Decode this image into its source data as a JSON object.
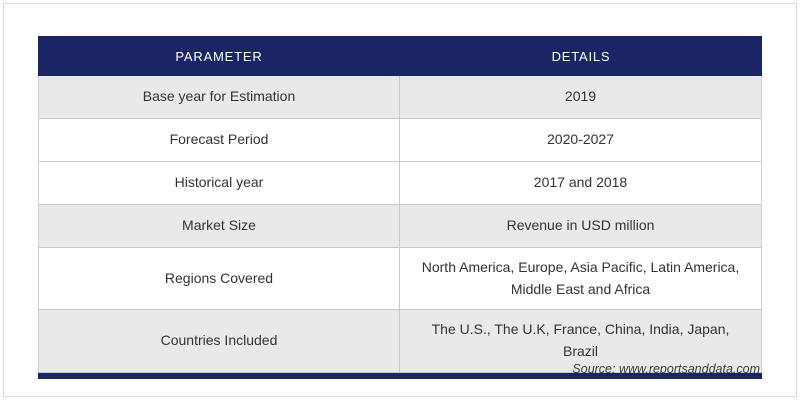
{
  "table": {
    "header": {
      "parameter": "PARAMETER",
      "details": "DETAILS"
    },
    "rows": [
      {
        "parameter": "Base year for Estimation",
        "details": "2019"
      },
      {
        "parameter": "Forecast Period",
        "details": "2020-2027"
      },
      {
        "parameter": "Historical year",
        "details": "2017 and 2018"
      },
      {
        "parameter": "Market Size",
        "details": "Revenue in USD million"
      },
      {
        "parameter": "Regions Covered",
        "details": "North America, Europe, Asia Pacific, Latin America, Middle East and Africa"
      },
      {
        "parameter": "Countries Included",
        "details": "The U.S., The  U.K, France, China, India, Japan, Brazil"
      }
    ]
  },
  "source": {
    "label": "Source: www.reportsanddata.com"
  },
  "colors": {
    "header_bg": "#1b2566",
    "row_shaded_bg": "#e9e9e9",
    "row_plain_bg": "#ffffff",
    "bottom_bar": "#1b2566"
  },
  "chart_data": {
    "type": "table",
    "title": "",
    "columns": [
      "PARAMETER",
      "DETAILS"
    ],
    "rows": [
      [
        "Base year for Estimation",
        "2019"
      ],
      [
        "Forecast Period",
        "2020-2027"
      ],
      [
        "Historical year",
        "2017 and 2018"
      ],
      [
        "Market Size",
        "Revenue in USD million"
      ],
      [
        "Regions Covered",
        "North America, Europe, Asia Pacific, Latin America, Middle East and Africa"
      ],
      [
        "Countries Included",
        "The U.S., The  U.K, France, China, India, Japan, Brazil"
      ]
    ],
    "annotations": [
      "Source: www.reportsanddata.com"
    ]
  }
}
